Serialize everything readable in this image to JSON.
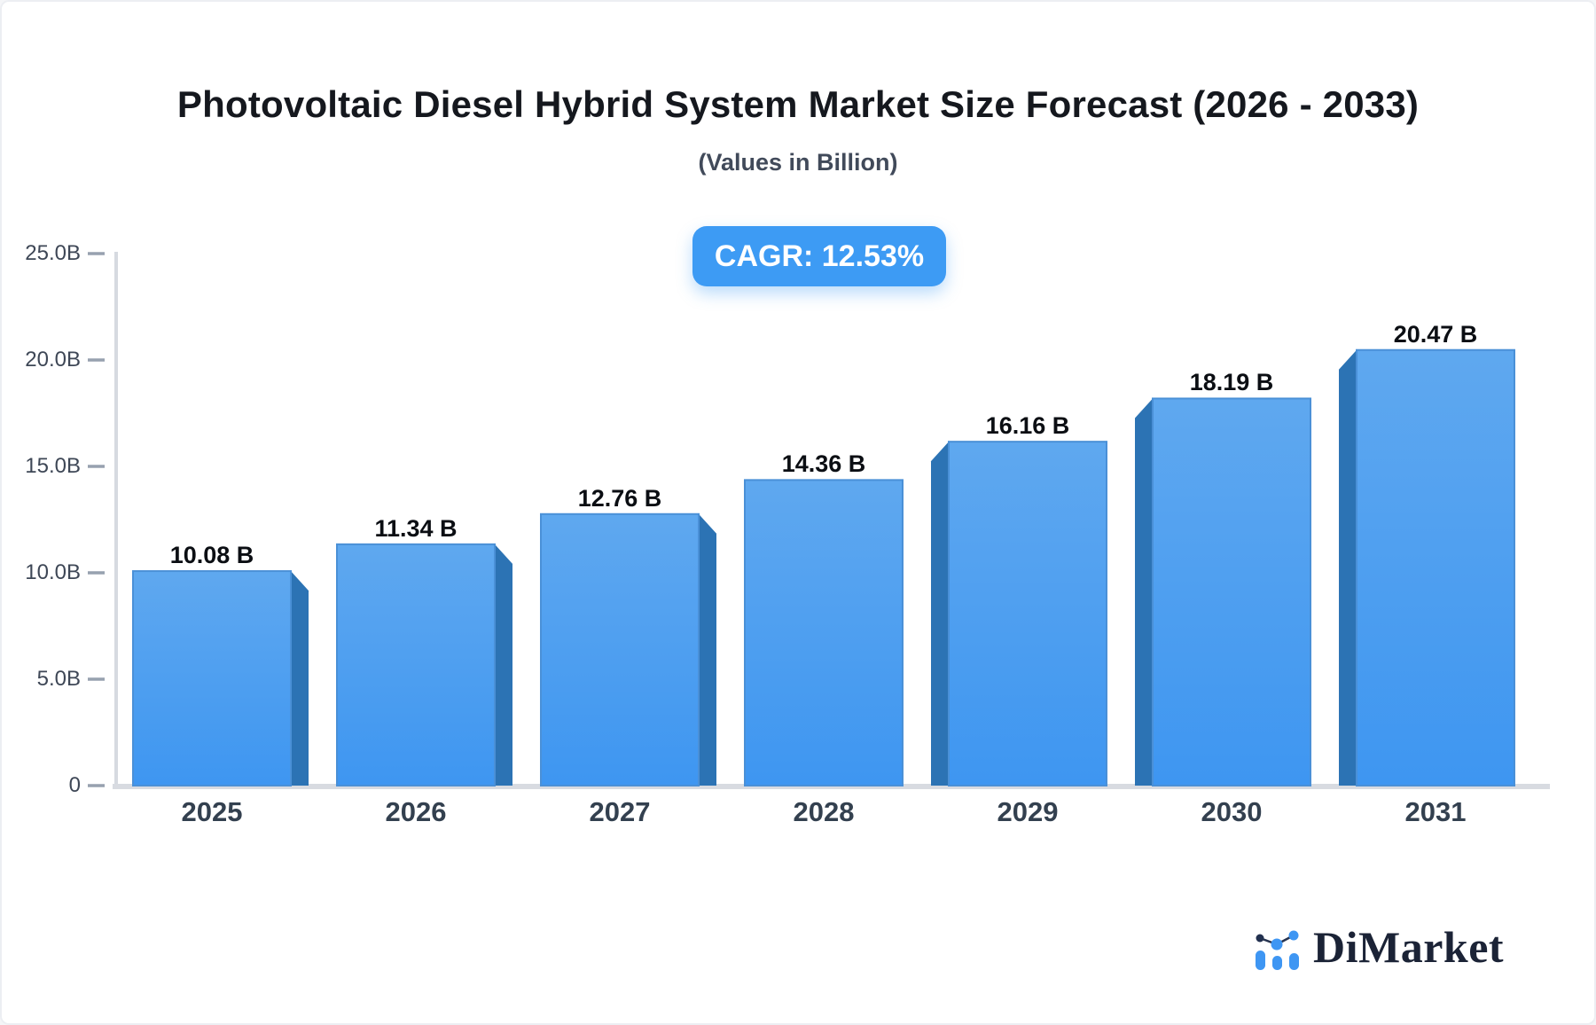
{
  "header": {
    "title": "Photovoltaic Diesel Hybrid System Market Size Forecast (2026 - 2033)",
    "subtitle": "(Values in Billion)",
    "cagr_badge": "CAGR: 12.53%"
  },
  "chart_data": {
    "type": "bar",
    "title": "Photovoltaic Diesel Hybrid System Market Size Forecast (2026 - 2033)",
    "subtitle": "(Values in Billion)",
    "annotation": "CAGR: 12.53%",
    "categories": [
      "2025",
      "2026",
      "2027",
      "2028",
      "2029",
      "2030",
      "2031"
    ],
    "values": [
      10.08,
      11.34,
      12.76,
      14.36,
      16.16,
      18.19,
      20.47
    ],
    "value_labels": [
      "10.08 B",
      "11.34 B",
      "12.76 B",
      "14.36 B",
      "16.16 B",
      "18.19 B",
      "20.47 B"
    ],
    "unit": "Billion",
    "ylim": [
      0,
      25
    ],
    "y_tick_values": [
      25,
      20,
      15,
      10,
      5,
      0
    ],
    "y_tick_labels": [
      "25.0B",
      "20.0B",
      "15.0B",
      "10.0B",
      "5.0B",
      "0"
    ],
    "grid": false,
    "legend": false,
    "style": "3d-bars, perspective vanishing at center column",
    "colors": {
      "bar_front_top": "#5FA8EF",
      "bar_front_bottom": "#3E96F1",
      "bar_edge": "#4A90D7",
      "bar_side": "#2C73B4",
      "axis_line": "#D6DAE0",
      "baseline": "#D8DBE1",
      "tick_dash": "#97A1AF",
      "badge_blue": "#3D9BF4"
    }
  },
  "branding": {
    "logo_text": "DiMarket",
    "logo_icon": "bar-line-chart-icon",
    "logo_navy": "#1B2336",
    "logo_blue": "#3E96F3"
  }
}
